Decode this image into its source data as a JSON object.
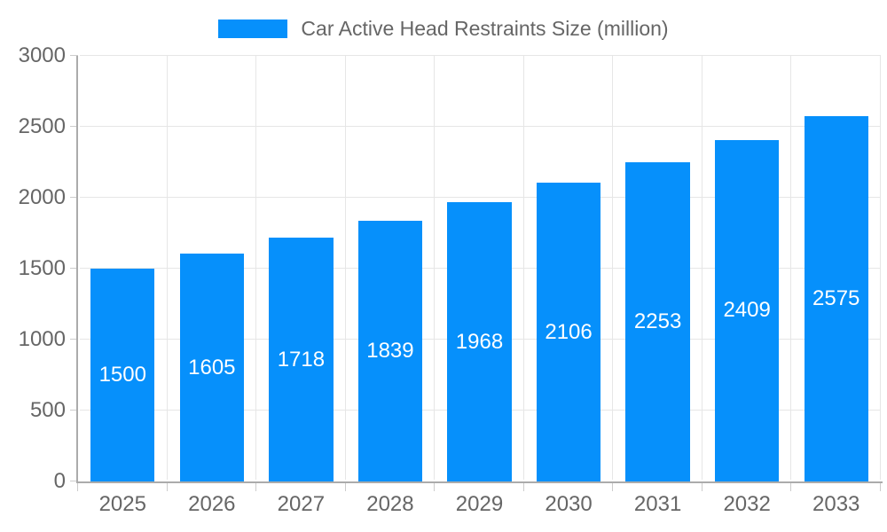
{
  "chart_data": {
    "type": "bar",
    "title": "Car Active Head Restraints Size (million)",
    "legend_position": "top",
    "categories": [
      "2025",
      "2026",
      "2027",
      "2028",
      "2029",
      "2030",
      "2031",
      "2032",
      "2033"
    ],
    "values": [
      1500,
      1605,
      1718,
      1839,
      1968,
      2106,
      2253,
      2409,
      2575
    ],
    "xlabel": "",
    "ylabel": "",
    "ylim": [
      0,
      3000
    ],
    "yticks": [
      0,
      500,
      1000,
      1500,
      2000,
      2500,
      3000
    ],
    "grid": true,
    "show_value_labels": true,
    "value_labels_inside": true,
    "colors": {
      "bar": "#0690fb",
      "value_label": "#ffffff",
      "axis_text": "#666666",
      "legend_text": "#666666",
      "grid_line": "#e6e6e6",
      "tick_mark": "#cccccc",
      "axis_line": "#ababab",
      "background": "#ffffff"
    }
  }
}
